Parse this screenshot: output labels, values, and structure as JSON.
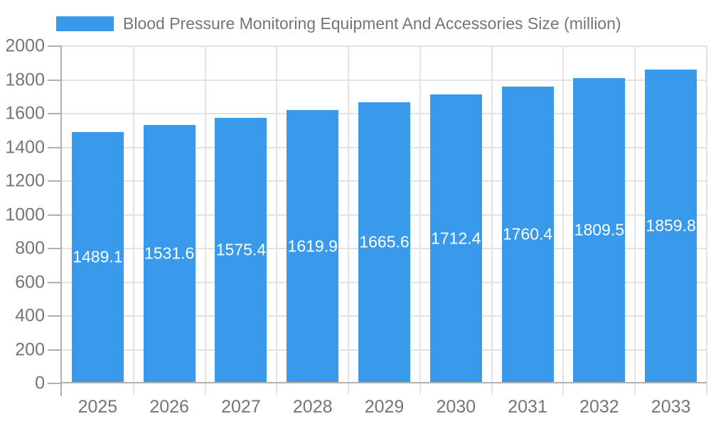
{
  "chart_data": {
    "type": "bar",
    "title": "Blood Pressure Monitoring Equipment And Accessories Size (million)",
    "legend": {
      "position": "top",
      "label": "Blood Pressure Monitoring Equipment And Accessories Size (million)"
    },
    "categories": [
      "2025",
      "2026",
      "2027",
      "2028",
      "2029",
      "2030",
      "2031",
      "2032",
      "2033"
    ],
    "values": [
      1489.1,
      1531.6,
      1575.4,
      1619.9,
      1665.6,
      1712.4,
      1760.4,
      1809.5,
      1859.8
    ],
    "value_labels": [
      "1489.1",
      "1531.6",
      "1575.4",
      "1619.9",
      "1665.6",
      "1712.4",
      "1760.4",
      "1809.5",
      "1859.8"
    ],
    "xlabel": "",
    "ylabel": "",
    "ylim": [
      0,
      2000
    ],
    "yticks": [
      0,
      200,
      400,
      600,
      800,
      1000,
      1200,
      1400,
      1600,
      1800,
      2000
    ],
    "grid": true,
    "bar_labels_inside": true
  },
  "style": {
    "bar_color": "#3999eb",
    "grid_color": "#e3e3e3",
    "axis_color": "#b0b0b0",
    "tick_label_color": "#757575",
    "bar_label_color": "#ffffff",
    "background": "#ffffff"
  }
}
